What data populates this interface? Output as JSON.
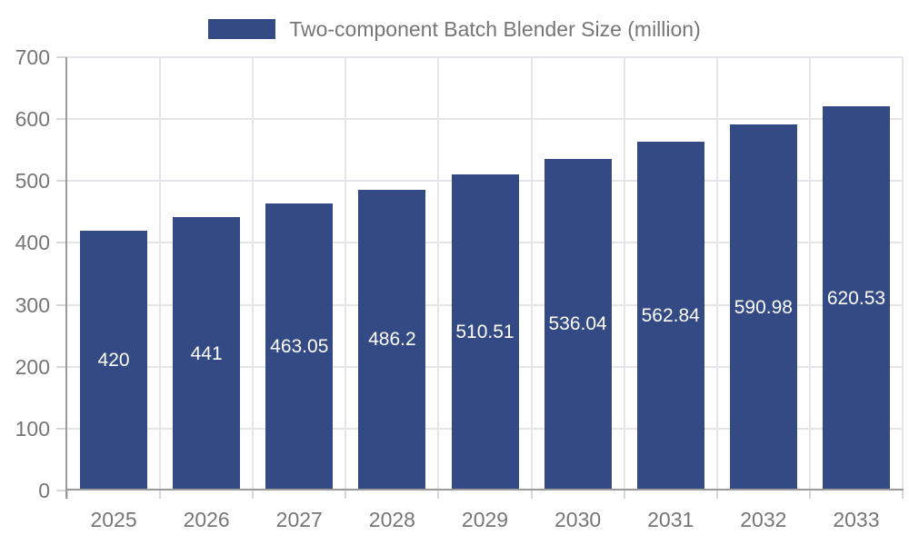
{
  "chart_data": {
    "type": "bar",
    "title": "Two-component Batch Blender Size (million)",
    "categories": [
      "2025",
      "2026",
      "2027",
      "2028",
      "2029",
      "2030",
      "2031",
      "2032",
      "2033"
    ],
    "values": [
      420,
      441,
      463.05,
      486.2,
      510.51,
      536.04,
      562.84,
      590.98,
      620.53
    ],
    "value_labels": [
      "420",
      "441",
      "463.05",
      "486.2",
      "510.51",
      "536.04",
      "562.84",
      "590.98",
      "620.53"
    ],
    "xlabel": "",
    "ylabel": "",
    "ylim": [
      0,
      700
    ],
    "yticks": [
      0,
      100,
      200,
      300,
      400,
      500,
      600,
      700
    ],
    "grid": true,
    "legend_position": "top",
    "colors": {
      "bar": "#344A84",
      "bar_label": "#FFFFFF",
      "grid": "#E5E6EA",
      "tick": "#D8D8D8",
      "axis": "#9A9A9A",
      "text": "#767676"
    }
  }
}
